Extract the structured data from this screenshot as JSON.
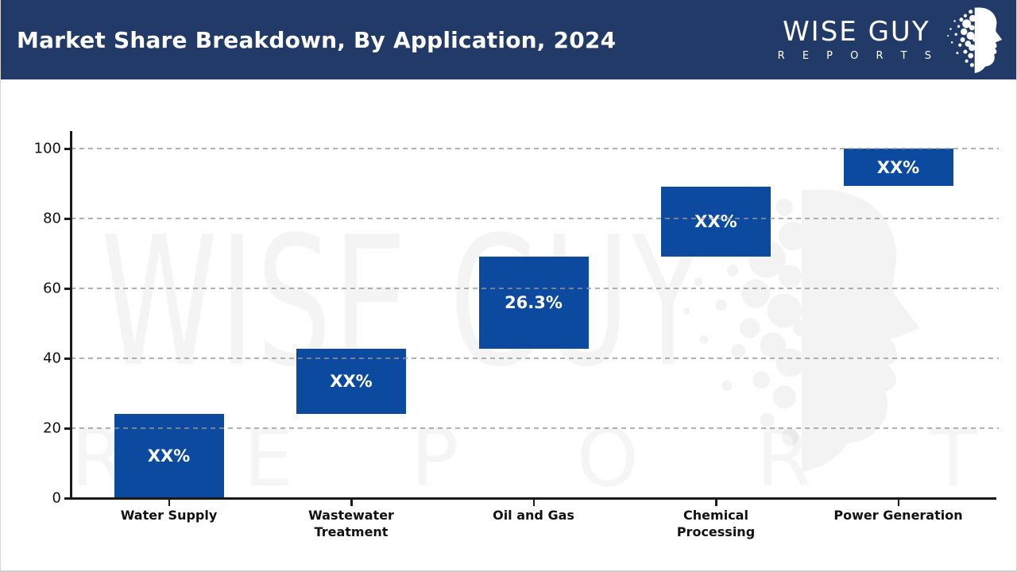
{
  "header": {
    "title": "Market Share Breakdown, By Application, 2024",
    "bg_color": "#223a67",
    "logo": {
      "wordmark": "WISE GUY",
      "subtitle": "R E P O R T S"
    }
  },
  "watermark": {
    "wordmark": "WISE GUY",
    "subtitle": "R E P O R T S"
  },
  "chart_data": {
    "type": "bar",
    "subtype": "waterfall-floating-bars",
    "title": "Market Share Breakdown, By Application, 2024",
    "categories": [
      "Water Supply",
      "Wastewater Treatment",
      "Oil and Gas",
      "Chemical Processing",
      "Power Generation"
    ],
    "categories_lines": [
      [
        "Water Supply"
      ],
      [
        "Wastewater",
        "Treatment"
      ],
      [
        "Oil and Gas"
      ],
      [
        "Chemical",
        "Processing"
      ],
      [
        "Power Generation"
      ]
    ],
    "segments": [
      {
        "category": "Water Supply",
        "start": 0,
        "end": 24.1,
        "label": "XX%"
      },
      {
        "category": "Wastewater Treatment",
        "start": 24.1,
        "end": 42.8,
        "label": "XX%"
      },
      {
        "category": "Oil and Gas",
        "start": 42.8,
        "end": 69.1,
        "label": "26.3%"
      },
      {
        "category": "Chemical Processing",
        "start": 69.1,
        "end": 89.2,
        "label": "XX%"
      },
      {
        "category": "Power Generation",
        "start": 89.4,
        "end": 99.9,
        "label": "XX%"
      }
    ],
    "yticks": [
      0,
      20,
      40,
      60,
      80,
      100
    ],
    "ylim": [
      0,
      105
    ],
    "xlabel": "",
    "ylabel": "",
    "bar_color": "#0c4aa0",
    "grid": {
      "show": true,
      "axis": "y",
      "style": "dashed"
    },
    "legend": null
  }
}
